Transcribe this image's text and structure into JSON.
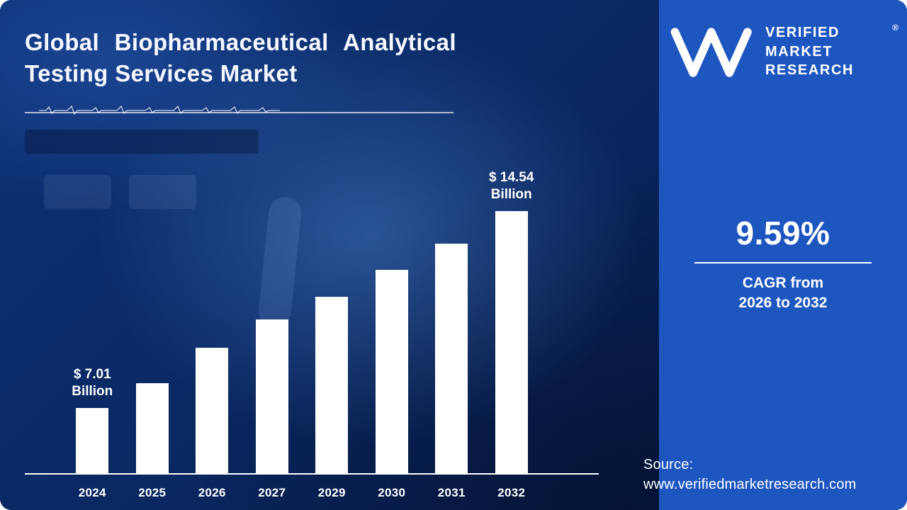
{
  "page": {
    "title_lines": [
      "Global Biopharmaceutical Analytical",
      "Testing Services Market"
    ]
  },
  "brand": {
    "monogram": "VM",
    "name_lines": [
      "VERIFIED",
      "MARKET",
      "RESEARCH"
    ],
    "registered_mark": "®"
  },
  "stats": {
    "cagr_value": "9.59%",
    "cagr_caption_lines": [
      "CAGR from",
      "2026 to 2032"
    ]
  },
  "source": {
    "label": "Source:",
    "url": "www.verifiedmarketresearch.com"
  },
  "colors": {
    "left_bg": "#0a2a66",
    "right_bg": "#1e56c0",
    "bar": "#ffffff",
    "text": "#ffffff"
  },
  "chart_data": {
    "type": "bar",
    "title": "Global Biopharmaceutical Analytical Testing Services Market",
    "unit": "$ Billion",
    "categories": [
      "2024",
      "2025",
      "2026",
      "2027",
      "2029",
      "2030",
      "2031",
      "2032"
    ],
    "values": [
      7.01,
      7.95,
      9.3,
      10.4,
      11.27,
      12.3,
      13.3,
      14.54
    ],
    "labeled_points": [
      {
        "index": 0,
        "text": "$ 7.01\nBillion"
      },
      {
        "index": 7,
        "text": "$ 14.54\nBillion"
      }
    ],
    "ylim": [
      4.5,
      15.5
    ],
    "xlabel": "",
    "ylabel": "",
    "grid": false,
    "legend": false,
    "bar_color": "#ffffff"
  }
}
